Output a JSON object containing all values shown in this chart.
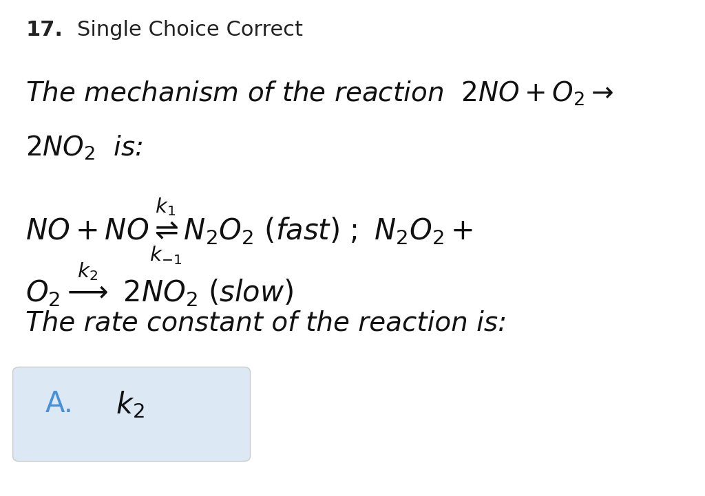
{
  "bg_color": "#ffffff",
  "header_number": "17.",
  "header_text": "Single Choice Correct",
  "header_fontsize": 22,
  "header_color": "#222222",
  "question_line1": "The mechanism of the reaction  $2NO + O_2 \\rightarrow$",
  "question_line2": "$2NO_2$  is:",
  "question_fontsize": 28,
  "question_color": "#111111",
  "mechanism_fontsize": 30,
  "mechanism_color": "#111111",
  "rate_text": "The rate constant of the reaction is:",
  "rate_fontsize": 28,
  "rate_color": "#111111",
  "option_A_label": "A.",
  "option_A_label_color": "#4a90d9",
  "option_A_text": "$k_2$",
  "option_A_fontsize": 30,
  "option_A_color": "#111111",
  "option_box_color": "#dde8f5",
  "figsize": [
    10.24,
    7.21
  ],
  "dpi": 100
}
